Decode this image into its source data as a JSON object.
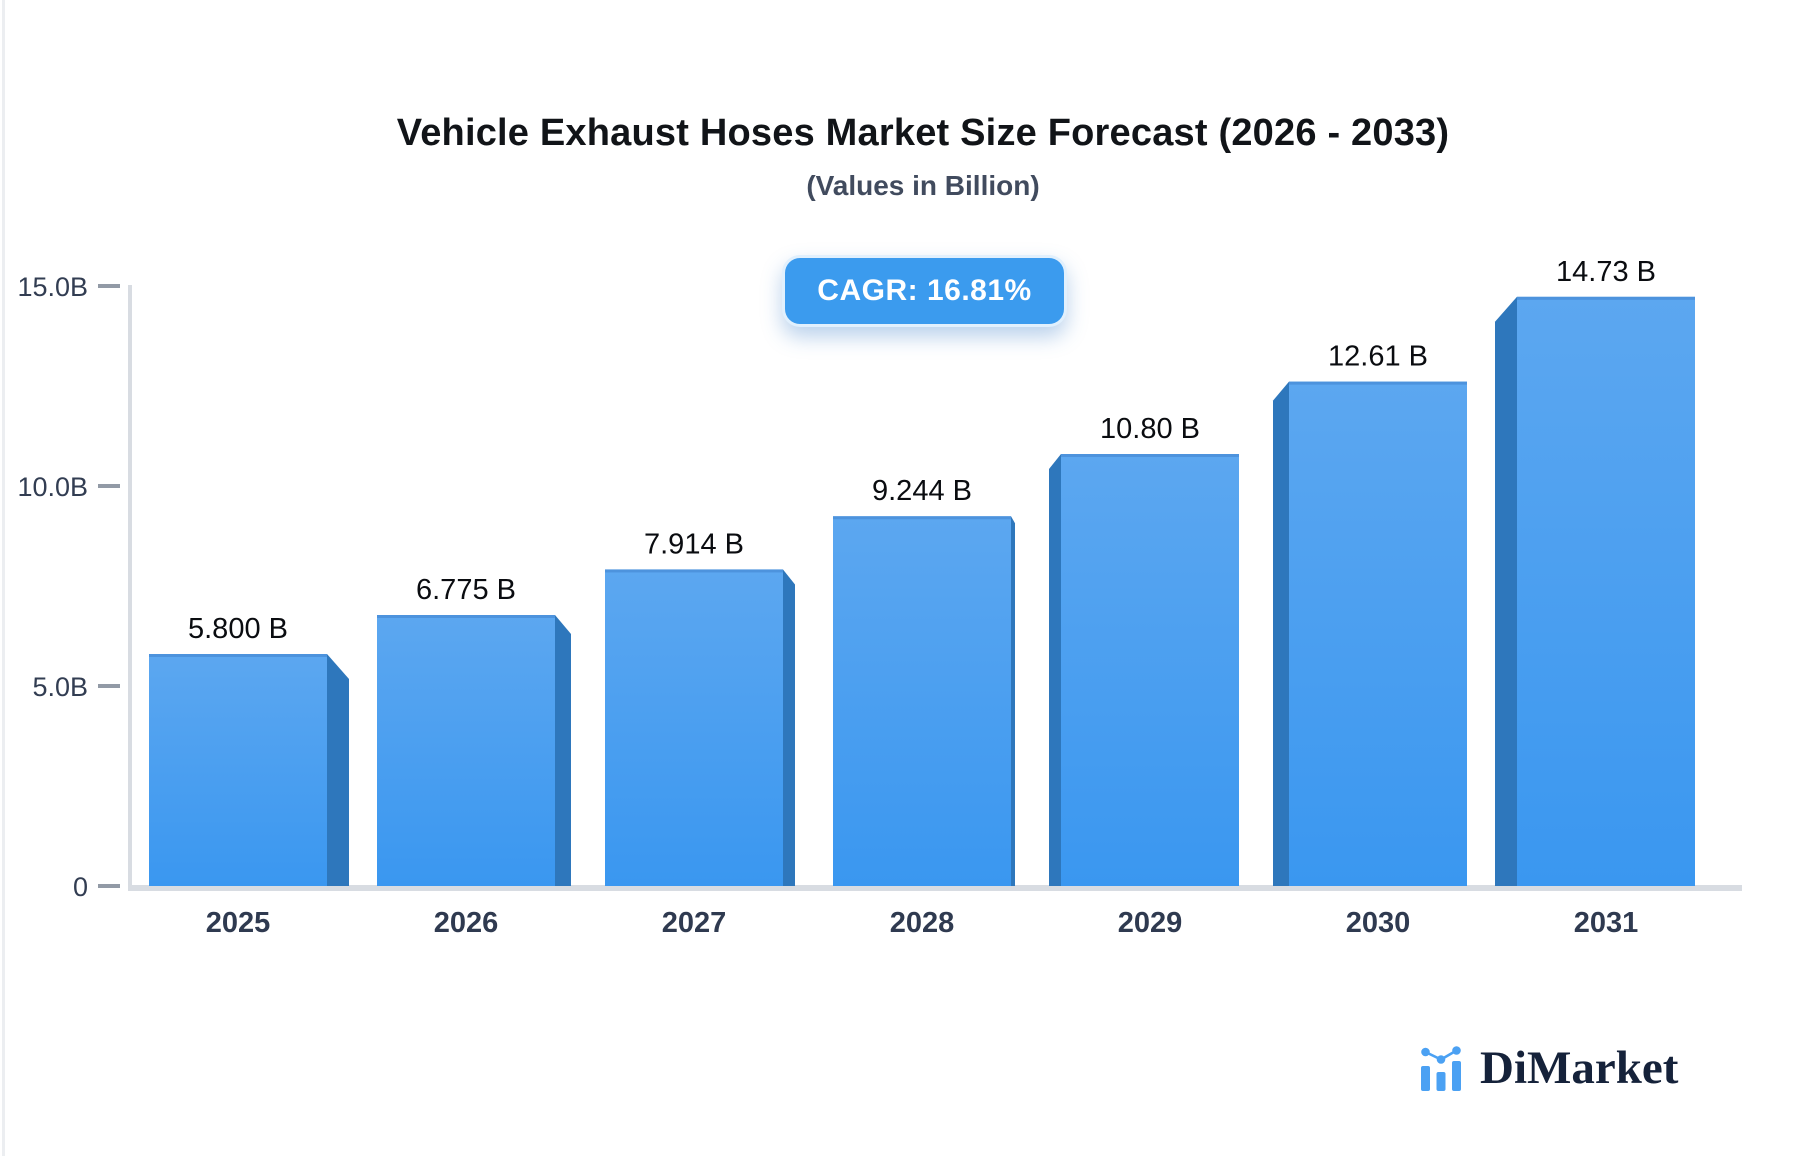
{
  "header": {
    "title": "Vehicle Exhaust Hoses Market Size Forecast (2026 - 2033)",
    "subtitle": "(Values in Billion)",
    "cagr_badge": "CAGR: 16.81%"
  },
  "chart_data": {
    "type": "bar",
    "title": "Vehicle Exhaust Hoses Market Size Forecast (2026 - 2033)",
    "subtitle": "(Values in Billion)",
    "categories": [
      "2025",
      "2026",
      "2027",
      "2028",
      "2029",
      "2030",
      "2031"
    ],
    "values": [
      5.8,
      6.775,
      7.914,
      9.244,
      10.8,
      12.61,
      14.73
    ],
    "value_labels": [
      "5.800 B",
      "6.775 B",
      "7.914 B",
      "9.244 B",
      "10.80 B",
      "12.61 B",
      "14.73 B"
    ],
    "cagr_label": "CAGR: 16.81%",
    "ylim": [
      0,
      15
    ],
    "y_ticks": [
      {
        "value": 0,
        "label": "0"
      },
      {
        "value": 5,
        "label": "5.0B"
      },
      {
        "value": 10,
        "label": "10.0B"
      },
      {
        "value": 15,
        "label": "15.0B"
      }
    ],
    "grid": false,
    "legend": false,
    "bar_style": "3d-perspective",
    "colors": {
      "bar_face_top": "#5ca7f0",
      "bar_face_bottom": "#3a97f0",
      "bar_top_edge": "#4a8fd9",
      "bar_side": "#2e77bc",
      "axis_line": "#d8dce2",
      "tick_dash": "#929aa6",
      "tick_label": "#323d52",
      "category_label": "#2f3a50",
      "value_label": "#0a0c10",
      "badge_bg": "#3b9bee"
    }
  },
  "logo": {
    "name": "DiMarket"
  }
}
